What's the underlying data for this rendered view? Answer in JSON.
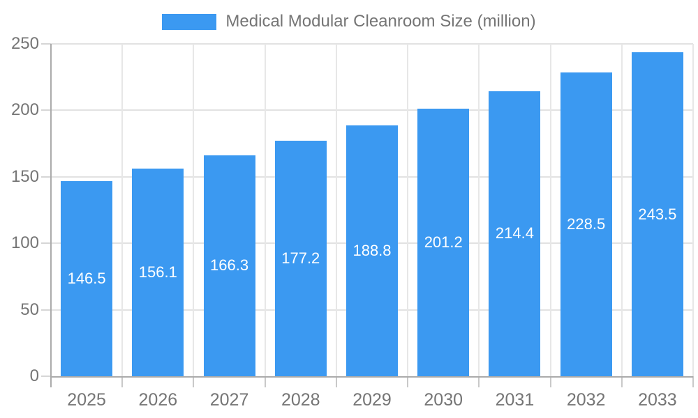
{
  "legend": {
    "label": "Medical Modular Cleanroom Size (million)"
  },
  "chart_data": {
    "type": "bar",
    "title": "Medical Modular Cleanroom Size (million)",
    "categories": [
      "2025",
      "2026",
      "2027",
      "2028",
      "2029",
      "2030",
      "2031",
      "2032",
      "2033"
    ],
    "values": [
      146.5,
      156.1,
      166.3,
      177.2,
      188.8,
      201.2,
      214.4,
      228.5,
      243.5
    ],
    "xlabel": "",
    "ylabel": "",
    "ylim": [
      0,
      250
    ],
    "yticks": [
      0,
      50,
      100,
      150,
      200,
      250
    ],
    "grid": true,
    "legend_position": "top",
    "bar_color": "#3b99f1",
    "value_label_color": "#ffffff",
    "axis_text_color": "#757575",
    "gridline_color": "#e2e2e2",
    "axis_line_color": "#ababab"
  }
}
